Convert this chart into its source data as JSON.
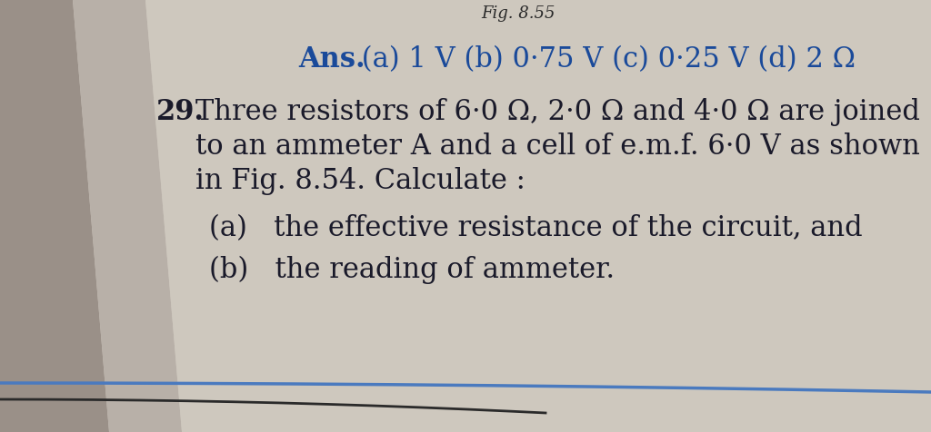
{
  "bg_color_left": "#b0a8a0",
  "bg_color_right": "#d8d0c8",
  "bg_color_main": "#ccc5bc",
  "top_text": "Fig. 8.55",
  "ans_bold": "Ans.",
  "ans_rest": " (a) 1 V (b) 0·75 V (c) 0·25 V (d) 2 Ω",
  "q29_number": "29.",
  "q29_line1": "Three resistors of 6·0 Ω, 2·0 Ω and 4·0 Ω are joined",
  "q29_line2": "to an ammeter A and a cell of e.m.f. 6·0 V as shown",
  "q29_line3": "in Fig. 8.54. Calculate :",
  "q29_sub_a": "(a)   the effective resistance of the circuit, and",
  "q29_sub_b": "(b)   the reading of ammeter.",
  "text_color": "#1a1a2a",
  "ans_color": "#1a4a9a",
  "bottom_line_color_blue": "#4a7abf",
  "bottom_line_color_dark": "#2a2a2a",
  "font_size_top": 13,
  "font_size_ans": 22,
  "font_size_main": 22,
  "font_size_num": 22
}
